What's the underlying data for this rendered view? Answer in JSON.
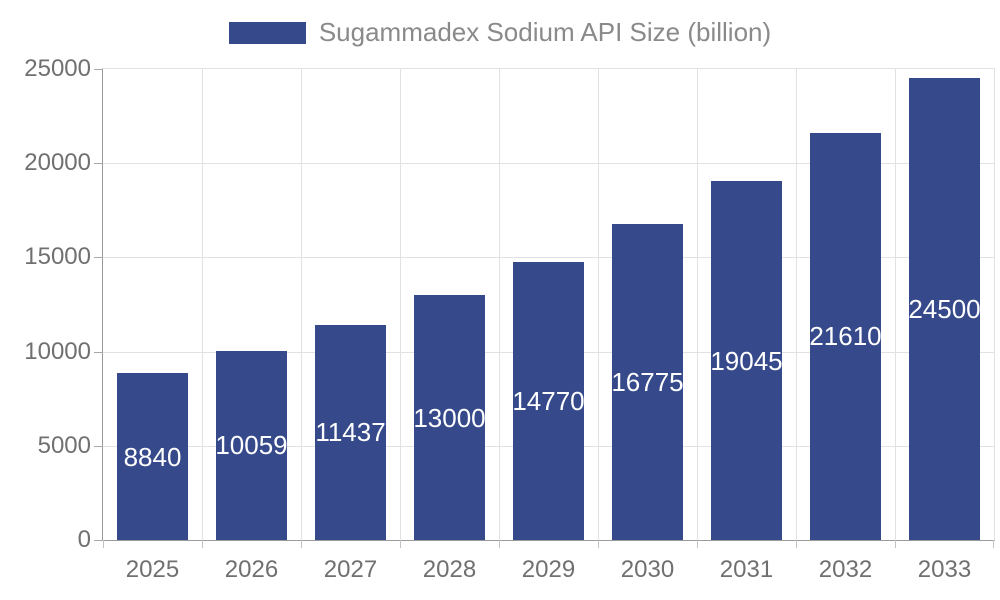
{
  "chart_data": {
    "type": "bar",
    "title": "Sugammadex Sodium API Size (billion)",
    "series_name": "Sugammadex Sodium API Size (billion)",
    "categories": [
      "2025",
      "2026",
      "2027",
      "2028",
      "2029",
      "2030",
      "2031",
      "2032",
      "2033"
    ],
    "values": [
      8840,
      10059,
      11437,
      13000,
      14770,
      16775,
      19045,
      21610,
      24500
    ],
    "xlabel": "",
    "ylabel": "",
    "ylim": [
      0,
      25000
    ],
    "yticks": [
      0,
      5000,
      10000,
      15000,
      20000,
      25000
    ],
    "grid": true,
    "legend_position": "top-center",
    "value_labels": "inside-center-white",
    "bar_color": "#364A8B",
    "value_label_color": "#FFFFFF",
    "axis_text_color": "#707070",
    "legend_text_color": "#8A8A8A",
    "gridline_color": "#E2E2E2",
    "axis_line_color": "#9A9A9A",
    "background_color": "#FFFFFF"
  }
}
